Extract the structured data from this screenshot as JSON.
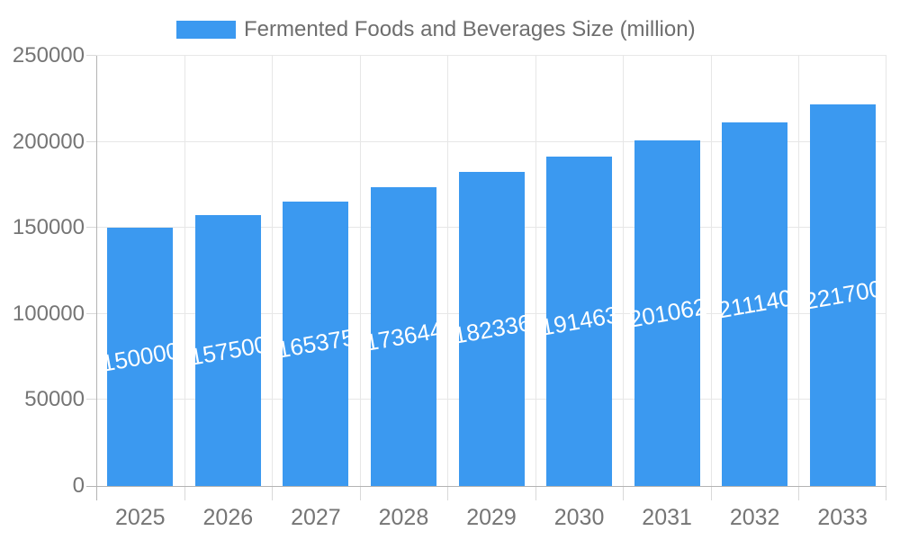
{
  "legend": {
    "label": "Fermented Foods and Beverages Size (million)",
    "position": "top"
  },
  "colors": {
    "bar": "#3b99f0",
    "bar_label_text": "#ffffff",
    "gridline": "#e7e7e7",
    "axis_zero_line": "#b3b3b3",
    "tick_mark": "#d9d9d9",
    "axis_text": "#757575",
    "legend_text": "#6e6e6e"
  },
  "chart_data": {
    "type": "bar",
    "title": "Fermented Foods and Beverages Size (million)",
    "categories": [
      "2025",
      "2026",
      "2027",
      "2028",
      "2029",
      "2030",
      "2031",
      "2032",
      "2033"
    ],
    "values": [
      150000,
      157500,
      165375,
      173644,
      182336,
      191463,
      201062,
      211140,
      221700
    ],
    "value_labels": [
      "150000",
      "157500",
      "165375",
      "173644",
      "182336",
      "191463",
      "201062",
      "211140",
      "221700"
    ],
    "xlabel": "",
    "ylabel": "",
    "ylim": [
      0,
      250000
    ],
    "yticks": [
      0,
      50000,
      100000,
      150000,
      200000,
      250000
    ],
    "ytick_labels": [
      "0",
      "50000",
      "100000",
      "150000",
      "200000",
      "250000"
    ],
    "grid": true,
    "legend_position": "top-center",
    "bar_label_position": "inside-middle",
    "bar_label_rotation_deg": -10
  }
}
